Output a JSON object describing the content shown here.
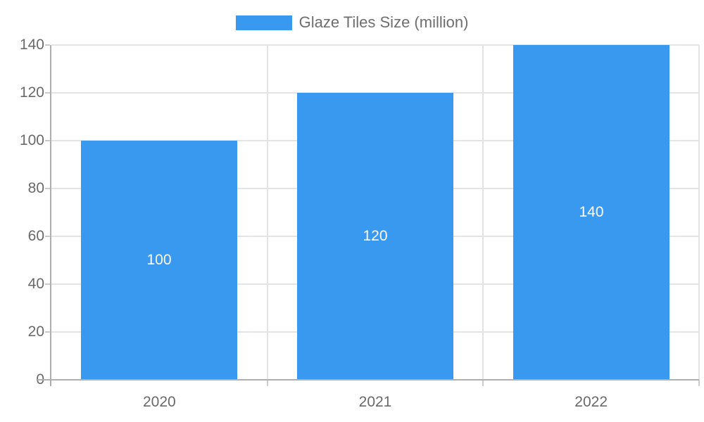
{
  "chart_data": {
    "type": "bar",
    "title": "",
    "categories": [
      "2020",
      "2021",
      "2022"
    ],
    "series": [
      {
        "name": "Glaze Tiles Size (million)",
        "values": [
          100,
          120,
          140
        ]
      }
    ],
    "data_labels": [
      "100",
      "120",
      "140"
    ],
    "y_ticks": [
      0,
      20,
      40,
      60,
      80,
      100,
      120,
      140
    ],
    "ylim": [
      0,
      140
    ],
    "xlabel": "",
    "ylabel": "",
    "grid": true,
    "legend_position": "top-center",
    "colors": {
      "bar": "#3999ee",
      "data_label": "#ffffff",
      "axis_label": "#696969",
      "legend_text": "#6e6e6e",
      "axis_line": "#aeaeae",
      "tick_line": "#cccccc",
      "gridline": "#e4e4e4",
      "background": "#ffffff"
    }
  }
}
